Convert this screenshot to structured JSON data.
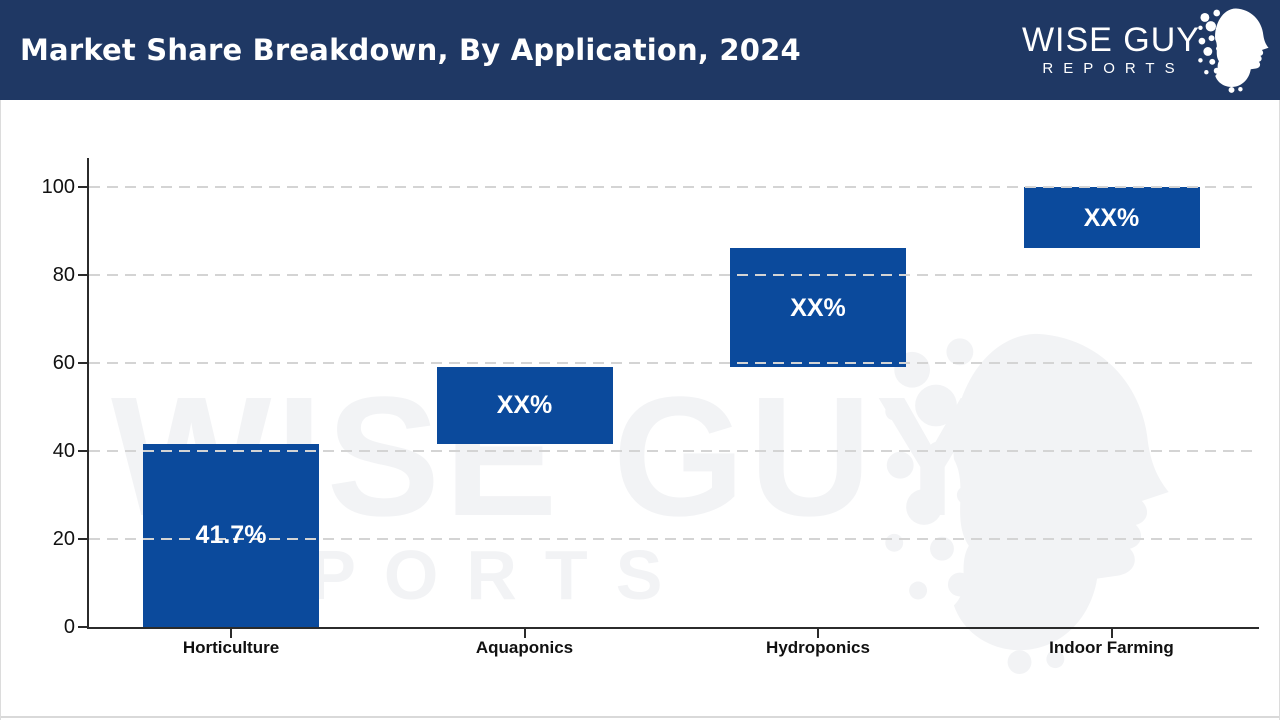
{
  "header": {
    "title": "Market Share Breakdown, By Application, 2024",
    "logo": {
      "wordmark": "WISE GUY",
      "subtext": "REPORTS"
    }
  },
  "watermark": {
    "line1": "WISE GUY",
    "line2": "REPORTS"
  },
  "chart_data": {
    "type": "bar",
    "subtype": "waterfall",
    "title": "Market Share Breakdown, By Application, 2024",
    "categories": [
      "Horticulture",
      "Aquaponics",
      "Hydroponics",
      "Indoor Farming"
    ],
    "series": [
      {
        "name": "Market Share (%)",
        "segments": [
          [
            0,
            41.7
          ],
          [
            41.7,
            59.0
          ],
          [
            59.0,
            86.1
          ],
          [
            86.1,
            100.0
          ]
        ]
      }
    ],
    "bar_labels": [
      "41.7%",
      "XX%",
      "XX%",
      "XX%"
    ],
    "xlabel": "",
    "ylabel": "",
    "ylim": [
      0,
      106
    ],
    "yticks": [
      0,
      20,
      40,
      60,
      80,
      100
    ],
    "grid": "horizontal-dashed",
    "legend": "none",
    "bar_color": "#0b4a9c",
    "bar_label_color": "#ffffff"
  },
  "colors": {
    "header_bg": "#1f3864",
    "bar": "#0b4a9c",
    "grid": "#d4d4d4",
    "axis": "#2b2b2b",
    "tick_text": "#111111",
    "watermark": "#f2f3f5"
  }
}
